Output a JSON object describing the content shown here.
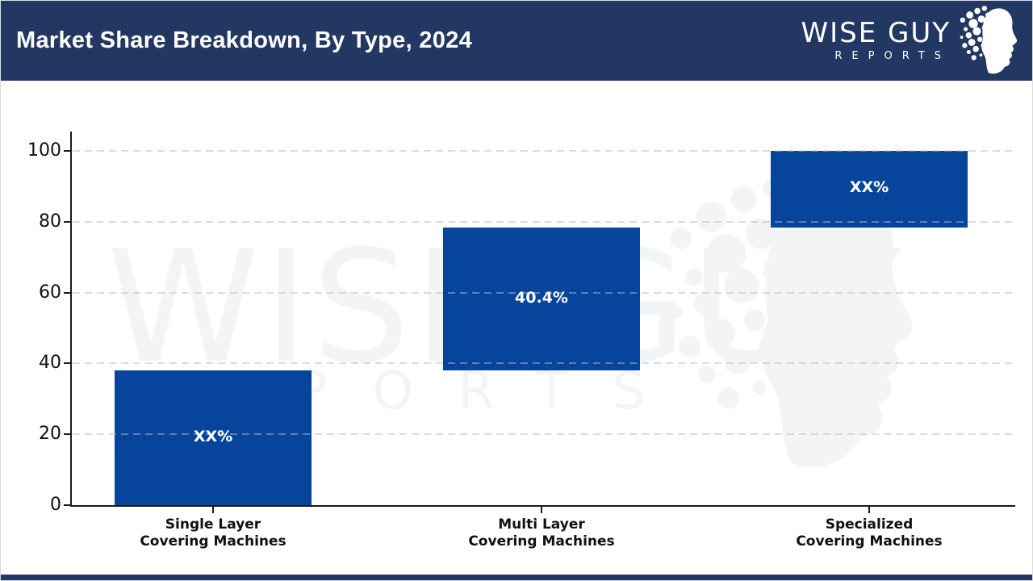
{
  "header": {
    "title": "Market Share Breakdown, By Type, 2024",
    "bg_color": "#223862"
  },
  "logo": {
    "line1": "WISE GUY",
    "line2": "REPORTS"
  },
  "watermark": {
    "line1": "WISE GUY",
    "line2": "REPORTS"
  },
  "chart_data": {
    "type": "bar",
    "subtype": "waterfall-stacked",
    "title": "Market Share Breakdown, By Type, 2024",
    "categories": [
      [
        "Single Layer",
        "Covering Machines"
      ],
      [
        "Multi Layer",
        "Covering Machines"
      ],
      [
        "Specialized",
        "Covering Machines"
      ]
    ],
    "bars": [
      {
        "start": 0,
        "end": 38,
        "label": "XX%"
      },
      {
        "start": 38,
        "end": 78.4,
        "label": "40.4%"
      },
      {
        "start": 78.4,
        "end": 100,
        "label": "XX%"
      }
    ],
    "bar_color": "#07459d",
    "bar_label_color": "#ffffff",
    "xlabel": "",
    "ylabel": "",
    "ylim": [
      0,
      105
    ],
    "yticks": [
      0,
      20,
      40,
      60,
      80,
      100
    ],
    "grid": "horizontal-dashed",
    "legend": false
  }
}
